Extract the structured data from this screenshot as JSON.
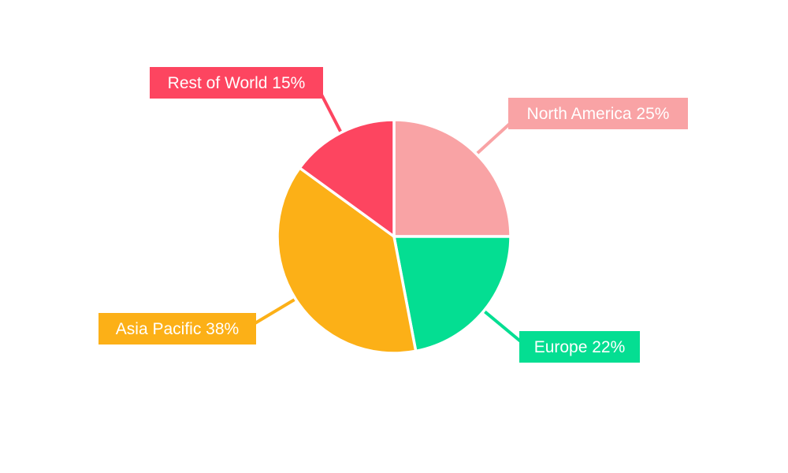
{
  "page": {
    "background": "#ffffff"
  },
  "chart_data": {
    "type": "pie",
    "categories": [
      "North America",
      "Europe",
      "Asia Pacific",
      "Rest of World"
    ],
    "values": [
      25,
      22,
      38,
      15
    ],
    "unit": "%",
    "colors": [
      "#F9A3A5",
      "#04DE92",
      "#FCB017",
      "#FD4560"
    ],
    "slice_labels": [
      "North America 25%",
      "Europe 22%",
      "Asia Pacific 38%",
      "Rest of World 15%"
    ],
    "label_text_color": "#ffffff",
    "slice_border_color": "#ffffff",
    "start_angle": "top",
    "direction": "clockwise",
    "legend_position": "none"
  }
}
